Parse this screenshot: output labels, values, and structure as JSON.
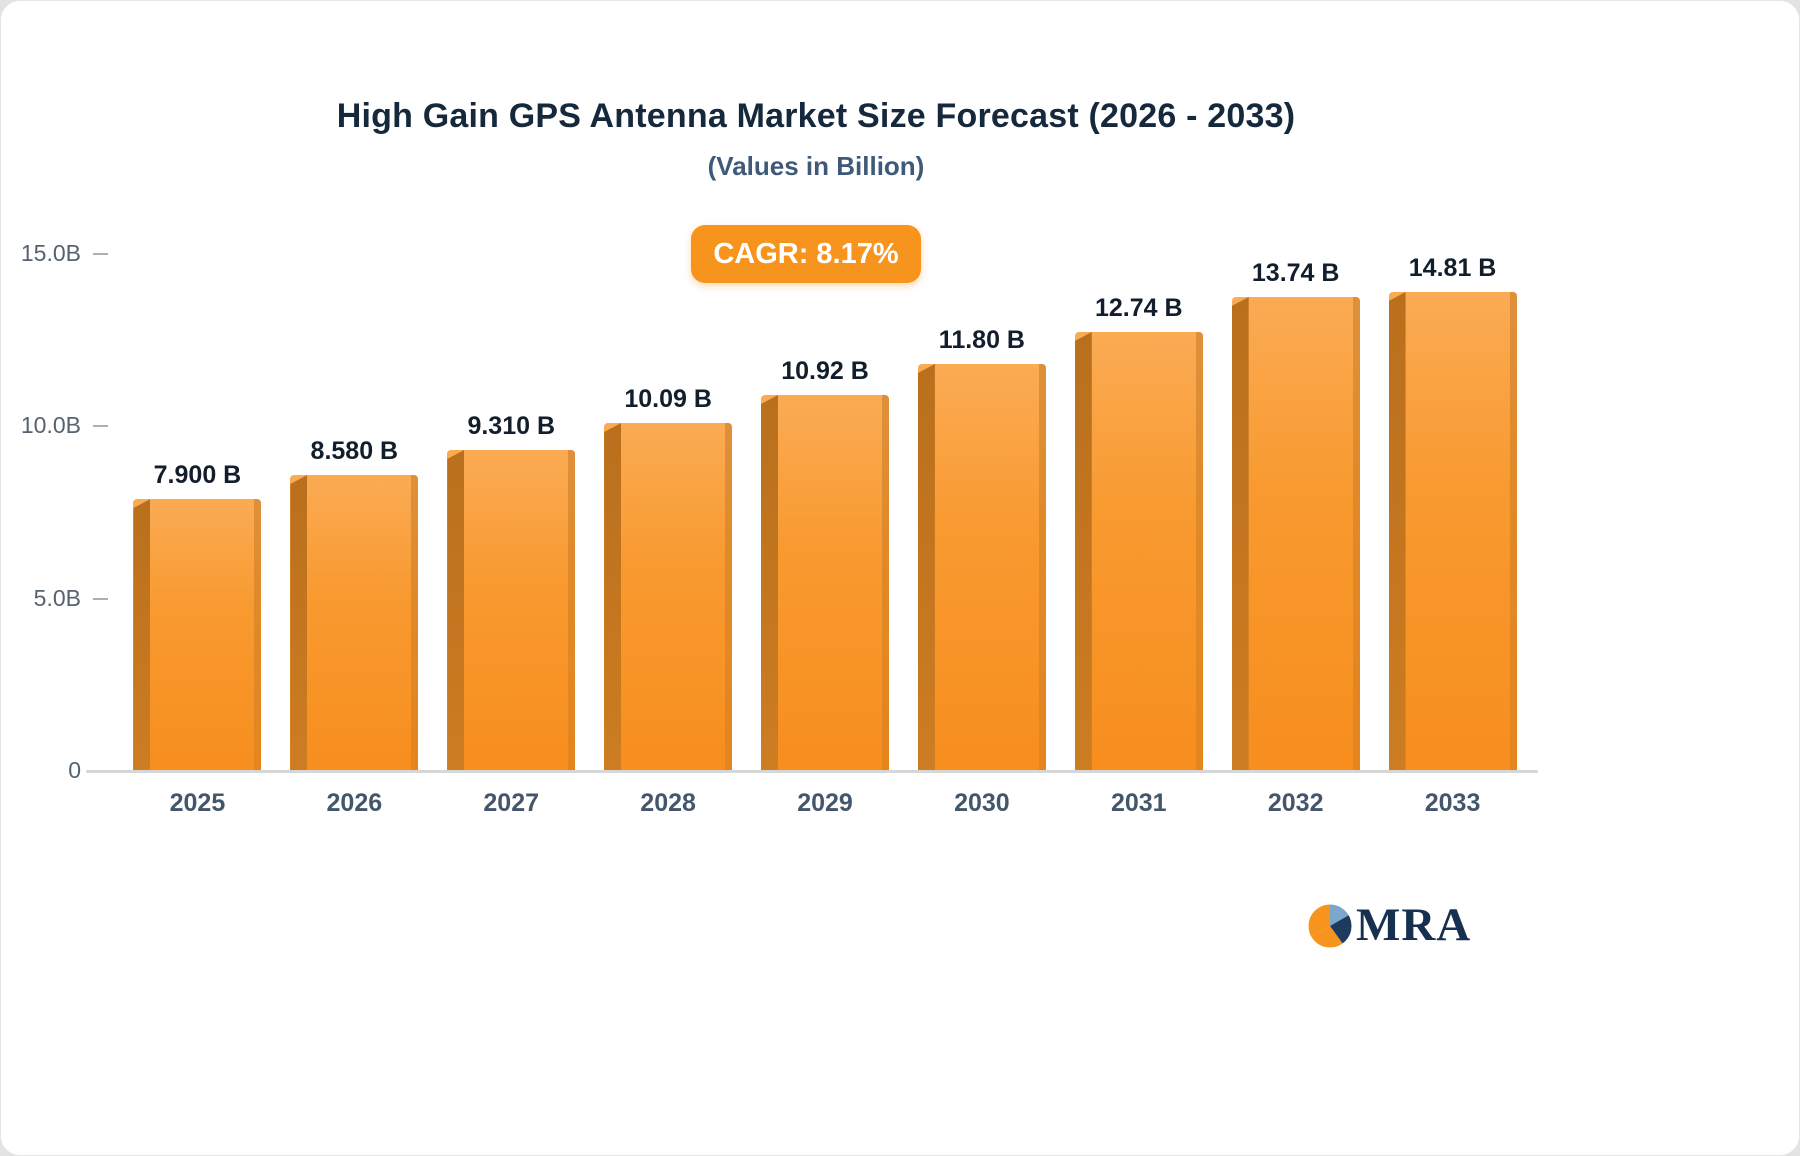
{
  "title": "High Gain GPS Antenna Market Size Forecast (2026 - 2033)",
  "subtitle": "(Values in Billion)",
  "cagr_badge": "CAGR: 8.17%",
  "logo_text": "MRA",
  "colors": {
    "bar_face": "#F7941E",
    "bar_side": "#C0771F",
    "badge": "#F7941E",
    "title_text": "#16283C",
    "subtitle_text": "#3F5A78",
    "axis_text": "#55626F"
  },
  "chart_data": {
    "type": "bar",
    "title": "High Gain GPS Antenna Market Size Forecast (2026 - 2033)",
    "subtitle": "(Values in Billion)",
    "annotation": "CAGR: 8.17%",
    "categories": [
      "2025",
      "2026",
      "2027",
      "2028",
      "2029",
      "2030",
      "2031",
      "2032",
      "2033"
    ],
    "values": [
      7.9,
      8.58,
      9.31,
      10.09,
      10.92,
      11.8,
      12.74,
      13.74,
      14.81
    ],
    "value_labels": [
      "7.900 B",
      "8.580 B",
      "9.310 B",
      "10.09 B",
      "10.92 B",
      "11.80 B",
      "12.74 B",
      "13.74 B",
      "14.81 B"
    ],
    "xlabel": "",
    "ylabel": "",
    "ylim": [
      0,
      15
    ],
    "yticks": [
      {
        "value": 0,
        "label": "0"
      },
      {
        "value": 5,
        "label": "5.0B"
      },
      {
        "value": 10,
        "label": "10.0B"
      },
      {
        "value": 15,
        "label": "15.0B"
      }
    ],
    "grid": false,
    "legend": false,
    "units": "Billion USD"
  }
}
